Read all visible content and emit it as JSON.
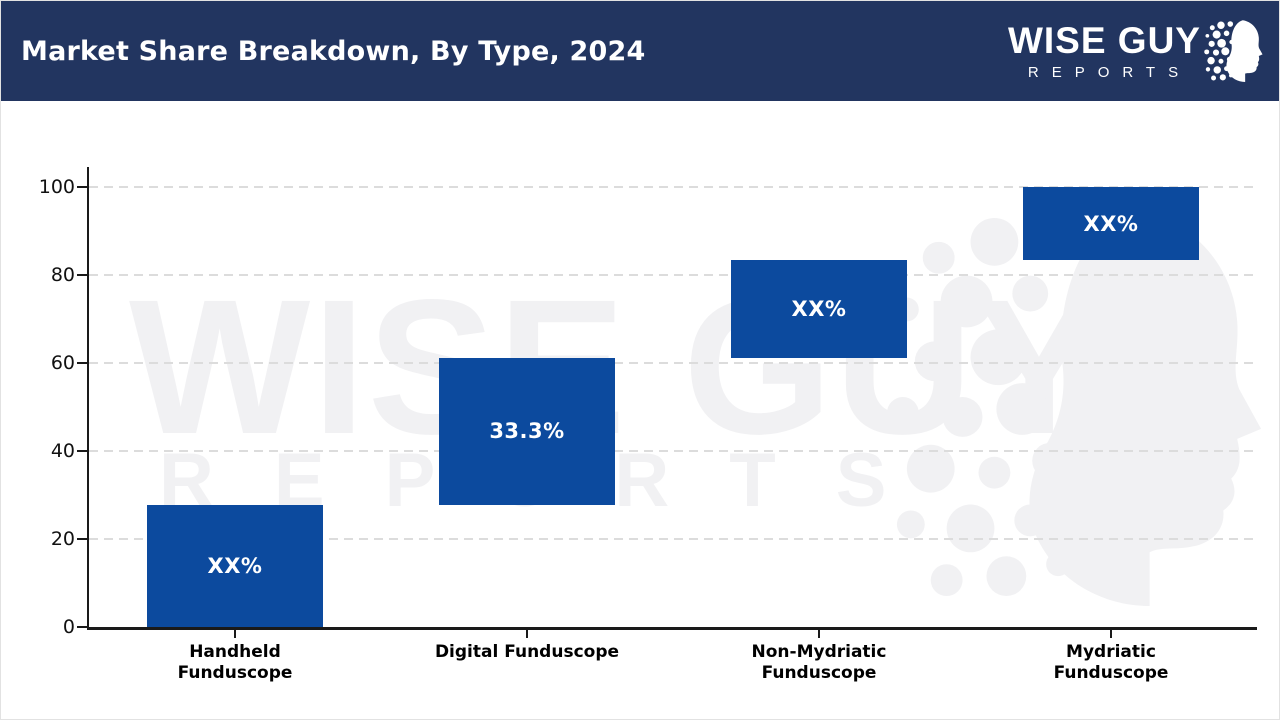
{
  "header": {
    "title": "Market Share Breakdown, By Type, 2024",
    "logo": {
      "name": "WISE GUY",
      "sub": "REPORTS"
    }
  },
  "watermark": {
    "name": "WISE GUY",
    "sub": "REPORTS"
  },
  "colors": {
    "header_bg": "#223560",
    "bar": "#0C4A9E",
    "grid": "#DCDCDC",
    "axis": "#1A1A1A",
    "bar_label": "#FFFFFF",
    "watermark": "#F1F1F3"
  },
  "chart_data": {
    "type": "bar",
    "subtype": "stacked-waterfall",
    "title": "Market Share Breakdown, By Type, 2024",
    "categories": [
      "Handheld\nFunduscope",
      "Digital Funduscope",
      "Non-Mydriatic\nFunduscope",
      "Mydriatic\nFunduscope"
    ],
    "series": [
      {
        "name": "Market share (%)",
        "segments": [
          {
            "category": "Handheld Funduscope",
            "start": 0,
            "end": 27.8,
            "label": "XX%"
          },
          {
            "category": "Digital Funduscope",
            "start": 27.8,
            "end": 61.1,
            "label": "33.3%"
          },
          {
            "category": "Non-Mydriatic Funduscope",
            "start": 61.1,
            "end": 83.3,
            "label": "XX%"
          },
          {
            "category": "Mydriatic Funduscope",
            "start": 83.3,
            "end": 100,
            "label": "XX%"
          }
        ]
      }
    ],
    "bar_labels": [
      "XX%",
      "33.3%",
      "XX%",
      "XX%"
    ],
    "values_masked": true,
    "ylim": [
      0,
      100
    ],
    "yticks": [
      0,
      20,
      40,
      60,
      80,
      100
    ],
    "xlabel": "",
    "ylabel": "",
    "grid": "horizontal-dashed",
    "legend": "none"
  }
}
